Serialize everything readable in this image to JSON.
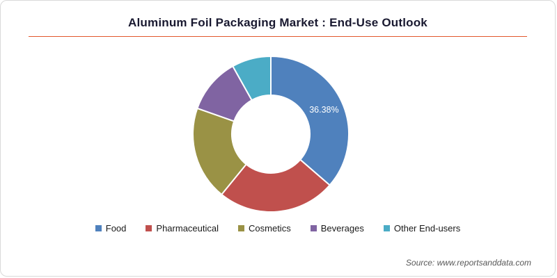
{
  "title": "Aluminum Foil Packaging Market : End-Use Outlook",
  "source": "Source: www.reportsanddata.com",
  "colors": {
    "divider": "#e2572b",
    "title_text": "#191930",
    "source_text": "#595959"
  },
  "chart_data": {
    "type": "pie",
    "subtype": "donut",
    "title": "Aluminum Foil Packaging Market : End-Use Outlook",
    "categories": [
      "Food",
      "Pharmaceutical",
      "Cosmetics",
      "Beverages",
      "Other End-users"
    ],
    "values": [
      36.38,
      24.5,
      19.5,
      11.5,
      8.12
    ],
    "colors": [
      "#4f81bd",
      "#c0504d",
      "#9a9245",
      "#8064a2",
      "#4bacc6"
    ],
    "slice_labels": [
      "36.38%",
      "",
      "",
      "",
      ""
    ],
    "donut_hole_ratio": 0.5,
    "start_angle_deg": 0,
    "direction": "clockwise",
    "legend_position": "bottom",
    "grid": false
  }
}
